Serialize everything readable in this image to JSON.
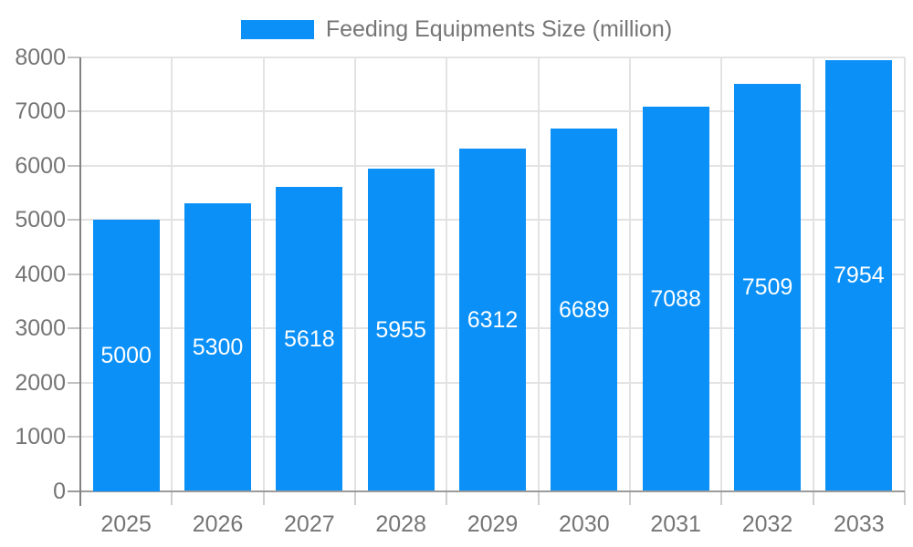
{
  "legend": {
    "label": "Feeding Equipments Size (million)",
    "swatch_color": "#0a90f7"
  },
  "chart_data": {
    "type": "bar",
    "title": "Feeding Equipments Size (million)",
    "categories": [
      "2025",
      "2026",
      "2027",
      "2028",
      "2029",
      "2030",
      "2031",
      "2032",
      "2033"
    ],
    "values": [
      5000,
      5300,
      5618,
      5955,
      6312,
      6689,
      7088,
      7509,
      7954
    ],
    "xlabel": "",
    "ylabel": "",
    "ylim": [
      0,
      8000
    ],
    "ytick_step": 1000,
    "ytick_labels": [
      "0",
      "1000",
      "2000",
      "3000",
      "4000",
      "5000",
      "6000",
      "7000",
      "8000"
    ],
    "grid": "horizontal lines at each 1000 plus vertical lines at category boundaries",
    "legend_position": "top-center",
    "bar_color": "#0a90f7",
    "bar_label_color": "#ffffff",
    "axis_text_color": "#757575",
    "gridline_color": "#e3e3e3"
  }
}
